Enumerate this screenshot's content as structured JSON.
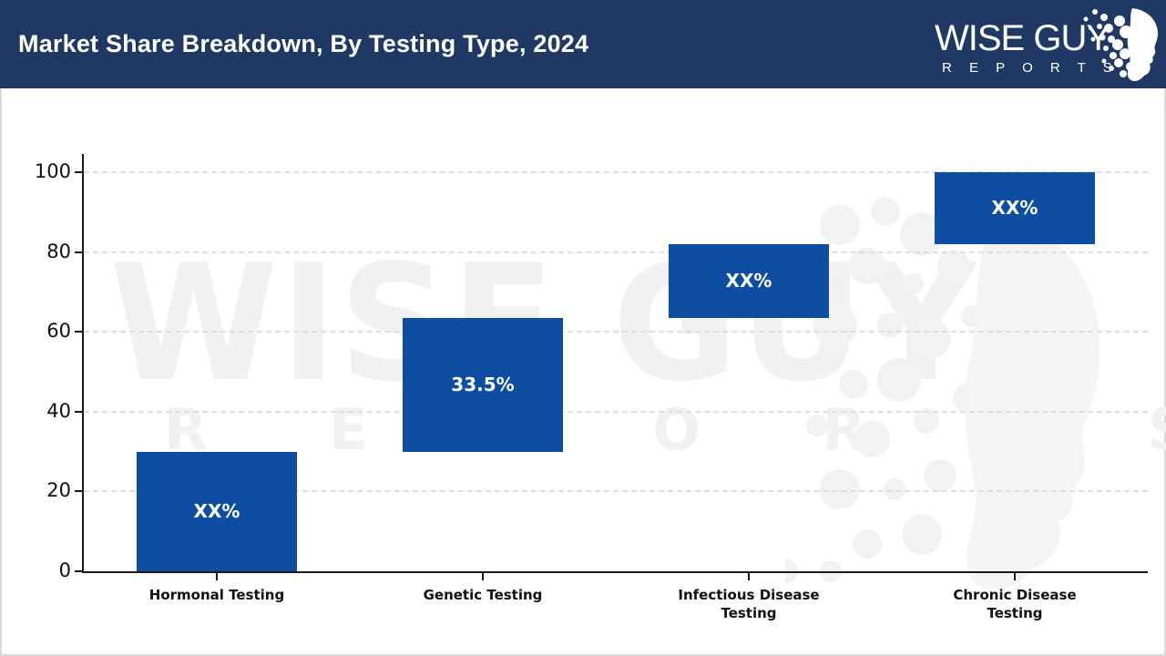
{
  "header": {
    "title": "Market Share Breakdown, By Testing Type, 2024",
    "logo": {
      "line1": "WISE GUY",
      "line2": "R E P O R T S"
    }
  },
  "watermark": {
    "line1": "WISE GUY",
    "line2": "R E P O R T S"
  },
  "chart_data": {
    "type": "bar",
    "subtype": "floating-waterfall-segments",
    "title": "Market Share Breakdown, By Testing Type, 2024",
    "categories": [
      "Hormonal Testing",
      "Genetic Testing",
      "Infectious Disease Testing",
      "Chronic Disease Testing"
    ],
    "segments": [
      {
        "category": "Hormonal Testing",
        "start": 0,
        "end": 30,
        "label": "XX%"
      },
      {
        "category": "Genetic Testing",
        "start": 30,
        "end": 63.5,
        "label": "33.5%"
      },
      {
        "category": "Infectious Disease Testing",
        "start": 63.5,
        "end": 82,
        "label": "XX%"
      },
      {
        "category": "Chronic Disease Testing",
        "start": 82,
        "end": 100,
        "label": "XX%"
      }
    ],
    "xlabel": "",
    "ylabel": "",
    "ylim": [
      0,
      100
    ],
    "yticks": [
      0,
      20,
      40,
      60,
      80,
      100
    ],
    "grid": "horizontal-dashed",
    "legend": "none",
    "bar_color": "#0d4da2",
    "bar_label_color": "#ffffff",
    "axis_color": "#1a1a1a",
    "grid_color": "#dedede"
  },
  "colors": {
    "header_bg": "#1f3864",
    "chart_bg": "#ffffff",
    "watermark": "#f1f1f1",
    "frame_border": "#d9d9d9"
  }
}
